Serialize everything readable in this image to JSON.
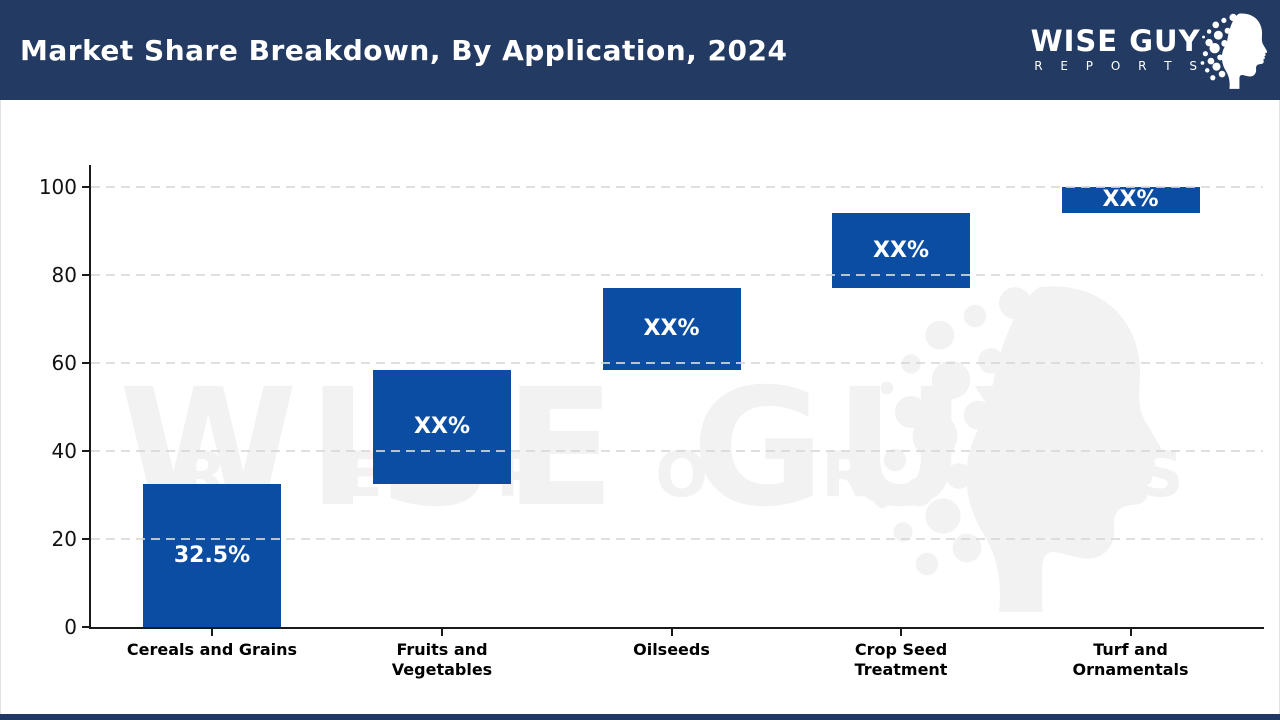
{
  "header": {
    "title": "Market Share Breakdown, By Application, 2024",
    "logo": {
      "name_line": "WISE GUY",
      "sub_line": "R E P O R T S"
    }
  },
  "watermark": {
    "name_line": "WISE GUY",
    "sub_line": "R E P O R T S"
  },
  "colors": {
    "header_bg": "#233A63",
    "footer_bg": "#1F3864",
    "bar_fill": "#0B4DA2",
    "bar_label": "#FFFFFF",
    "axis": "#1A1A1A",
    "grid": "#D9D9D9",
    "tick_label": "#111111",
    "watermark": "#F2F2F2"
  },
  "chart_data": {
    "type": "waterfall",
    "title": "Market Share Breakdown, By Application, 2024",
    "categories": [
      "Cereals and Grains",
      "Fruits and\nVegetables",
      "Oilseeds",
      "Crop Seed\nTreatment",
      "Turf and\nOrnamentals"
    ],
    "segments": [
      {
        "category": "Cereals and Grains",
        "start": 0,
        "end": 32.5,
        "label": "32.5%"
      },
      {
        "category": "Fruits and Vegetables",
        "start": 32.5,
        "end": 58.5,
        "label": "XX%"
      },
      {
        "category": "Oilseeds",
        "start": 58.5,
        "end": 77,
        "label": "XX%"
      },
      {
        "category": "Crop Seed Treatment",
        "start": 77,
        "end": 94,
        "label": "XX%"
      },
      {
        "category": "Turf and Ornamentals",
        "start": 94,
        "end": 100,
        "label": "XX%"
      }
    ],
    "y_ticks": [
      0,
      20,
      40,
      60,
      80,
      100
    ],
    "ylim": [
      0,
      105
    ],
    "xlabel": "",
    "ylabel": "",
    "grid": "horizontal-dashed",
    "legend": "none"
  }
}
